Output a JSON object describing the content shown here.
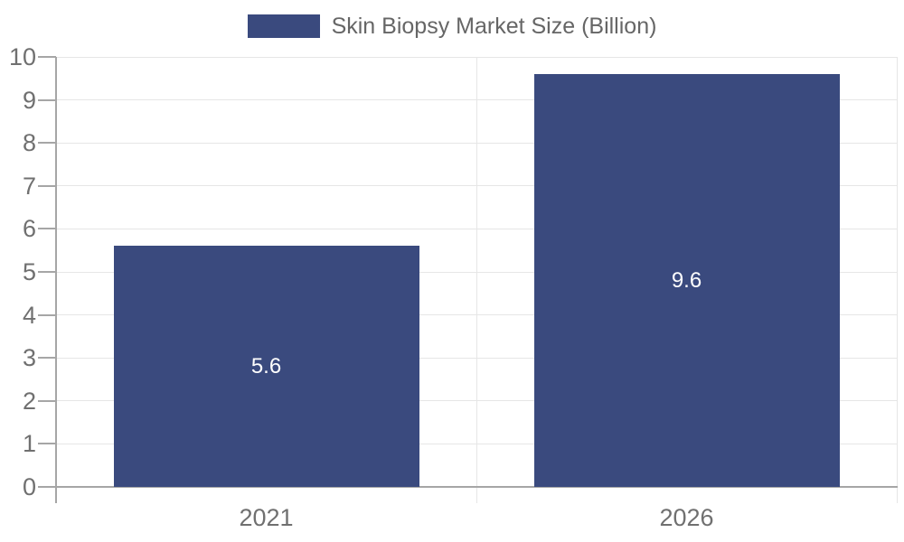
{
  "chart_data": {
    "type": "bar",
    "title": "Skin Biopsy Market Size (Billion)",
    "categories": [
      "2021",
      "2026"
    ],
    "values": [
      5.6,
      9.6
    ],
    "data_labels": [
      "5.6",
      "9.6"
    ],
    "ylim": [
      0,
      10
    ],
    "yticks": [
      0,
      1,
      2,
      3,
      4,
      5,
      6,
      7,
      8,
      9,
      10
    ],
    "grid": true,
    "legend_position": "top",
    "bar_color": "#3A4A7E",
    "data_label_color": "#FFFFFF",
    "axis_text_color": "#707070",
    "gridline_color": "#E6E6E6",
    "axis_line_color": "#A6A6A6"
  }
}
